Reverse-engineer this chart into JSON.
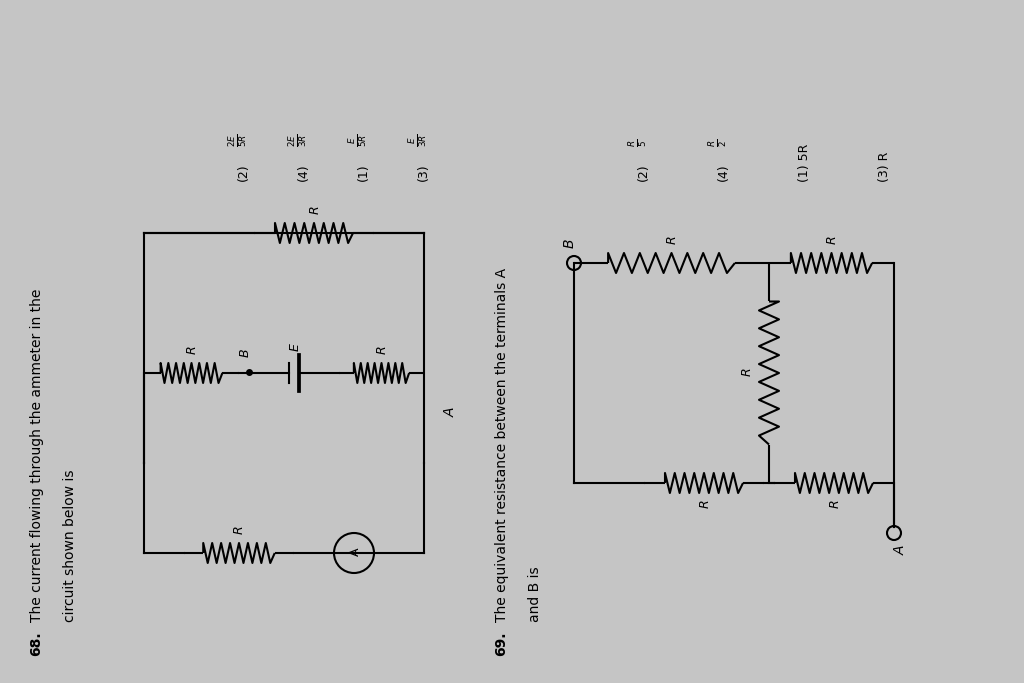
{
  "bg_color": "#c5c5c5",
  "q68_label": "68.",
  "q68_text1": "The current flowing through the ammeter in the",
  "q68_text2": "circuit shown below is",
  "q69_label": "69.",
  "q69_text1": "The equivalent resistance between the terminals A",
  "q69_text2": "and B is",
  "q68_opt1_num": "E",
  "q68_opt1_den": "5R",
  "q68_opt2_num": "2E",
  "q68_opt2_den": "5R",
  "q68_opt3_num": "E",
  "q68_opt3_den": "3R",
  "q68_opt4_num": "2E",
  "q68_opt4_den": "3R",
  "q69_opt1": "5R",
  "q69_opt2_num": "R",
  "q69_opt2_den": "5",
  "q69_opt3": "R",
  "q69_opt4_num": "R",
  "q69_opt4_den": "2"
}
